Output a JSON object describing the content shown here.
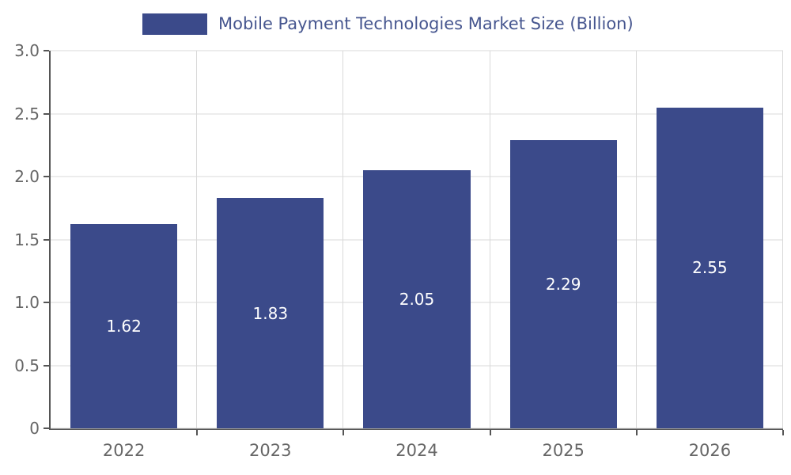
{
  "chart_data": {
    "type": "bar",
    "title": "Mobile Payment Technologies Market Size (Billion)",
    "categories": [
      "2022",
      "2023",
      "2024",
      "2025",
      "2026"
    ],
    "values": [
      1.62,
      1.83,
      2.05,
      2.29,
      2.55
    ],
    "value_labels": [
      "1.62",
      "1.83",
      "2.05",
      "2.29",
      "2.55"
    ],
    "xlabel": "",
    "ylabel": "",
    "ylim": [
      0,
      3.0
    ],
    "yticks": [
      0,
      0.5,
      1.0,
      1.5,
      2.0,
      2.5,
      3.0
    ],
    "ytick_labels": [
      "0",
      "0.5",
      "1.0",
      "1.5",
      "2.0",
      "2.5",
      "3.0"
    ],
    "grid": true,
    "legend_position": "top",
    "colors": {
      "bar": "#3b4a8a",
      "title_text": "#46568f",
      "grid": "#d9d9d9",
      "axis": "#555555",
      "tick_label": "#666666",
      "value_label": "#ffffff"
    }
  }
}
